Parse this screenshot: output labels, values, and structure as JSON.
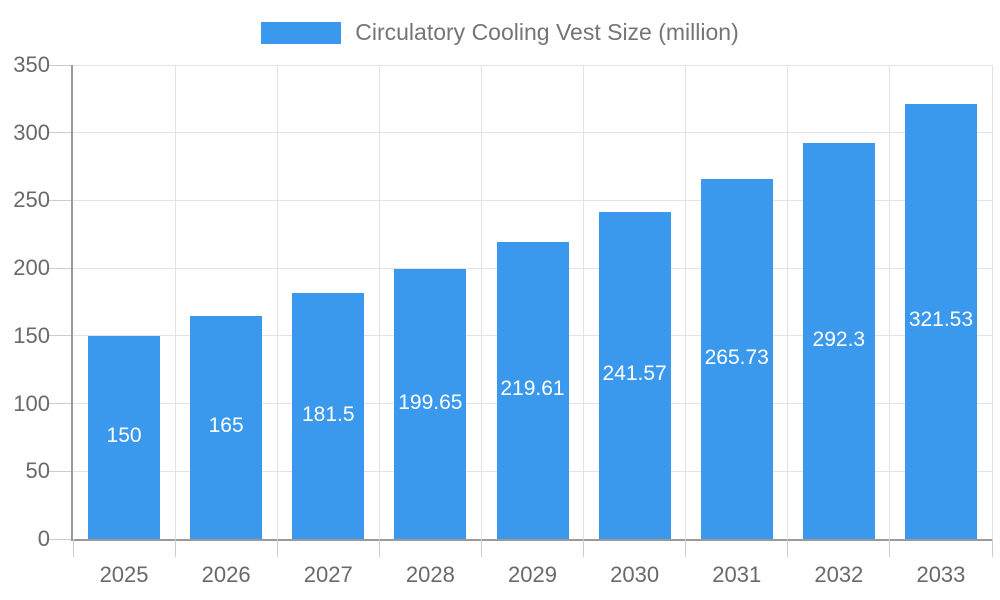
{
  "chart_data": {
    "type": "bar",
    "title": "Circulatory Cooling Vest Size (million)",
    "legend": {
      "label": "Circulatory Cooling Vest Size (million)",
      "position": "top-center"
    },
    "categories": [
      "2025",
      "2026",
      "2027",
      "2028",
      "2029",
      "2030",
      "2031",
      "2032",
      "2033"
    ],
    "values": [
      150,
      165,
      181.5,
      199.65,
      219.61,
      241.57,
      265.73,
      292.3,
      321.53
    ],
    "value_labels": [
      "150",
      "165",
      "181.5",
      "199.65",
      "219.61",
      "241.57",
      "265.73",
      "292.3",
      "321.53"
    ],
    "xlabel": "",
    "ylabel": "",
    "ylim": [
      0,
      350
    ],
    "ytick_step": 50,
    "ytick_labels": [
      "0",
      "50",
      "100",
      "150",
      "200",
      "250",
      "300",
      "350"
    ],
    "grid": true,
    "value_label_position": "inside-center",
    "colors": {
      "bar": "#3a99ec",
      "value_label": "#ffffff",
      "axis_text": "#696969",
      "legend_text": "#757575",
      "grid_line": "#e3e3e3",
      "axis_line": "#9a9a9a",
      "tick_line": "#cccccc",
      "background": "#ffffff"
    }
  }
}
